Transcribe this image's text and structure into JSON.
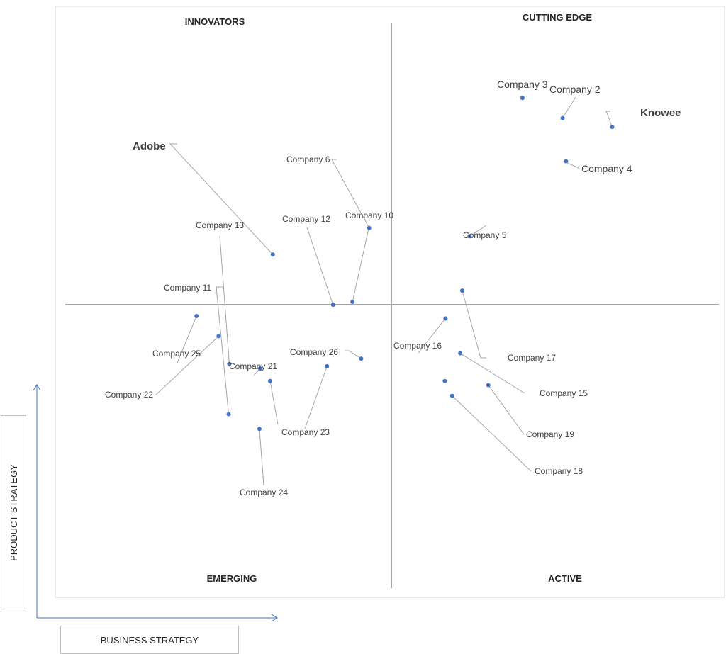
{
  "chart_data": {
    "type": "scatter",
    "title": "",
    "xlabel": "BUSINESS STRATEGY",
    "ylabel": "PRODUCT STRATEGY",
    "quadrants": {
      "top_left": "INNOVATORS",
      "top_right": "CUTTING EDGE",
      "bottom_left": "EMERGING",
      "bottom_right": "ACTIVE"
    },
    "xlim": [
      0,
      100
    ],
    "ylim": [
      0,
      100
    ],
    "points": [
      {
        "label": "Knowee",
        "x": 83.2,
        "y": 79.6,
        "highlight": true
      },
      {
        "label": "Company 2",
        "x": 75.8,
        "y": 81.1
      },
      {
        "label": "Company 3",
        "x": 69.8,
        "y": 84.5
      },
      {
        "label": "Company 4",
        "x": 76.3,
        "y": 73.8
      },
      {
        "label": "Company 5",
        "x": 61.9,
        "y": 61.1
      },
      {
        "label": "Adobe",
        "x": 32.5,
        "y": 58.0,
        "highlight": true
      },
      {
        "label": "Company 6",
        "x": 46.9,
        "y": 62.5
      },
      {
        "label": "Company 10",
        "x": 44.4,
        "y": 50.0
      },
      {
        "label": "Company 12",
        "x": 41.5,
        "y": 49.5
      },
      {
        "label": "Company 13",
        "x": 26.0,
        "y": 39.5
      },
      {
        "label": "Company 11",
        "x": 25.9,
        "y": 31.0
      },
      {
        "label": "Company 25",
        "x": 21.1,
        "y": 47.6
      },
      {
        "label": "Company 22",
        "x": 24.4,
        "y": 44.2
      },
      {
        "label": "Company 21",
        "x": 30.6,
        "y": 38.7
      },
      {
        "label": "Company 23",
        "x": 32.1,
        "y": 36.6
      },
      {
        "label": "Company 26",
        "x": 45.7,
        "y": 40.4
      },
      {
        "label": "Company 23",
        "x": 40.6,
        "y": 39.1
      },
      {
        "label": "Company 24",
        "x": 30.5,
        "y": 28.5
      },
      {
        "label": "Company 16",
        "x": 58.3,
        "y": 47.2
      },
      {
        "label": "Company 17",
        "x": 60.8,
        "y": 51.9
      },
      {
        "label": "Company 15",
        "x": 60.5,
        "y": 41.3
      },
      {
        "label": "Company 19",
        "x": 64.7,
        "y": 35.9
      },
      {
        "label": "Company 18",
        "x": 59.3,
        "y": 34.1
      },
      {
        "label": "Company 18",
        "x": 58.2,
        "y": 36.6
      }
    ]
  }
}
